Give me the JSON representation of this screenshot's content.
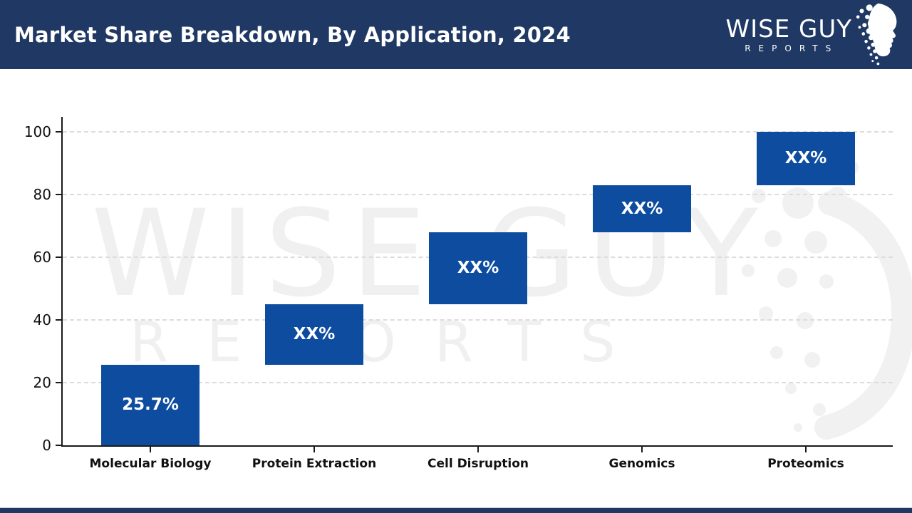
{
  "header": {
    "title": "Market Share Breakdown, By Application, 2024",
    "bg_color": "#1f3864",
    "logo": {
      "line1": "WISE GUY",
      "line2": "REPORTS"
    }
  },
  "watermark": {
    "line1": "WISE GUY",
    "line2": "REPORTS"
  },
  "footer": {
    "bg_color": "#1f3864"
  },
  "chart_data": {
    "type": "bar",
    "subtype": "waterfall",
    "title": "Market Share Breakdown, By Application, 2024",
    "categories": [
      "Molecular Biology",
      "Protein Extraction",
      "Cell Disruption",
      "Genomics",
      "Proteomics"
    ],
    "series": [
      {
        "name": "Market Share (%)",
        "starts": [
          0,
          25.7,
          45,
          68,
          83
        ],
        "ends": [
          25.7,
          45,
          68,
          83,
          100
        ],
        "segment_sizes": [
          25.7,
          19.3,
          23,
          15,
          17
        ]
      }
    ],
    "bar_labels": [
      "25.7%",
      "XX%",
      "XX%",
      "XX%",
      "XX%"
    ],
    "xlabel": "",
    "ylabel": "",
    "yticks": [
      0,
      20,
      40,
      60,
      80,
      100
    ],
    "ylim": [
      0,
      105
    ],
    "grid": "horizontal dashed",
    "legend": "none",
    "bar_color": "#0d4c9e",
    "axis_color": "#1a1a1a",
    "grid_color": "#dcdcdc"
  }
}
